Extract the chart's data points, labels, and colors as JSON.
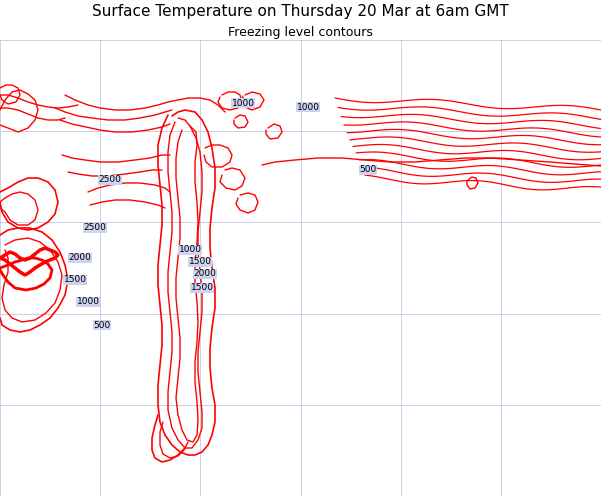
{
  "title": "Surface Temperature on Thursday 20 Mar at 6am GMT",
  "subtitle": "Freezing level contours",
  "map_bg": "#ccd2f0",
  "contour_color": "#ff0000",
  "title_fontsize": 11,
  "subtitle_fontsize": 9,
  "grid_color": "#b8bedd",
  "fig_bg": "#ffffff"
}
